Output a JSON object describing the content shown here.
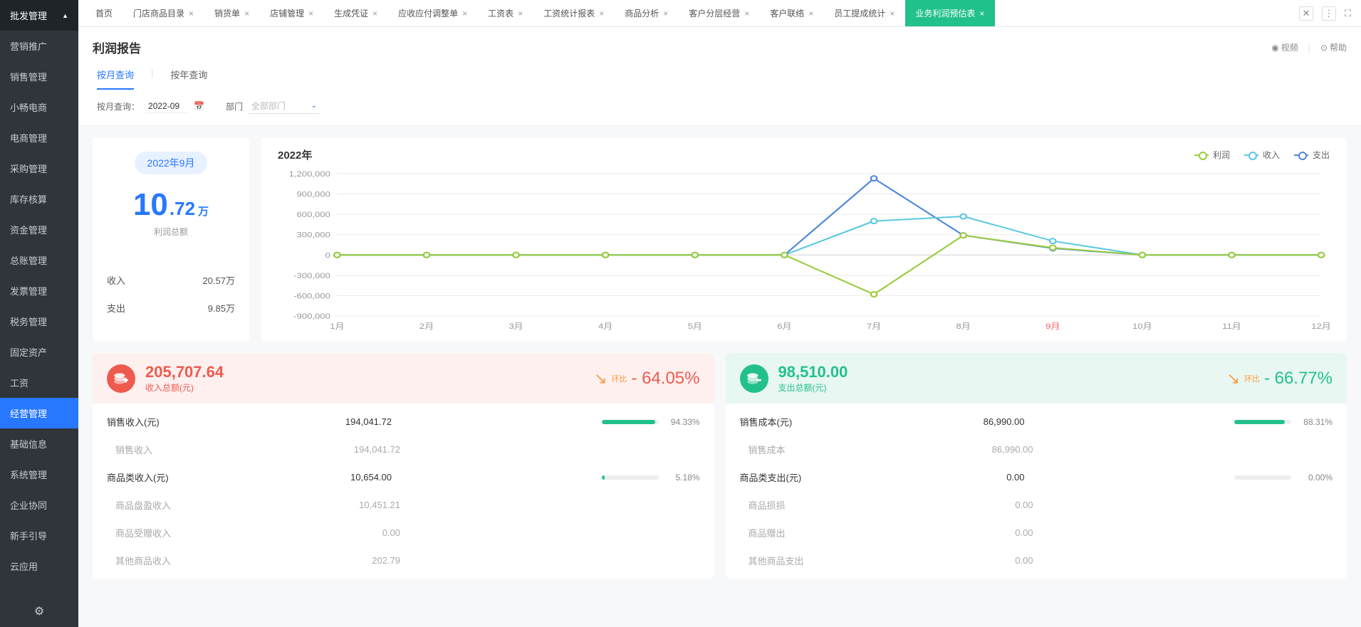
{
  "sidebar": {
    "header": "批发管理",
    "items": [
      {
        "label": "营销推广"
      },
      {
        "label": "销售管理"
      },
      {
        "label": "小畅电商"
      },
      {
        "label": "电商管理"
      },
      {
        "label": "采购管理"
      },
      {
        "label": "库存核算"
      },
      {
        "label": "资金管理"
      },
      {
        "label": "总账管理"
      },
      {
        "label": "发票管理"
      },
      {
        "label": "税务管理"
      },
      {
        "label": "固定资产"
      },
      {
        "label": "工资"
      },
      {
        "label": "经营管理",
        "active": true
      },
      {
        "label": "基础信息"
      },
      {
        "label": "系统管理"
      },
      {
        "label": "企业协同"
      },
      {
        "label": "新手引导"
      },
      {
        "label": "云应用"
      }
    ]
  },
  "tabs": [
    {
      "label": "首页",
      "closable": false
    },
    {
      "label": "门店商品目录",
      "closable": true
    },
    {
      "label": "销货单",
      "closable": true
    },
    {
      "label": "店铺管理",
      "closable": true
    },
    {
      "label": "生成凭证",
      "closable": true
    },
    {
      "label": "应收应付调整单",
      "closable": true
    },
    {
      "label": "工资表",
      "closable": true
    },
    {
      "label": "工资统计报表",
      "closable": true
    },
    {
      "label": "商品分析",
      "closable": true
    },
    {
      "label": "客户分层经营",
      "closable": true
    },
    {
      "label": "客户联络",
      "closable": true
    },
    {
      "label": "员工提成统计",
      "closable": true
    },
    {
      "label": "业务利润预估表",
      "closable": true,
      "active": true
    }
  ],
  "page": {
    "title": "利润报告",
    "help_video": "视频",
    "help_text": "帮助"
  },
  "query": {
    "tabs": [
      {
        "label": "按月查询",
        "active": true
      },
      {
        "label": "按年查询"
      }
    ],
    "month_label": "按月查询：",
    "month_value": "2022-09",
    "dept_label": "部门",
    "dept_placeholder": "全部部门"
  },
  "summary": {
    "badge": "2022年9月",
    "profit_int": "10",
    "profit_dec": ".72",
    "profit_unit": "万",
    "profit_label": "利润总额",
    "rows": [
      {
        "label": "收入",
        "value": "20.57万"
      },
      {
        "label": "支出",
        "value": "9.85万"
      }
    ]
  },
  "chart": {
    "title": "2022年",
    "legend": [
      {
        "label": "利润",
        "color": "#9bcc3c"
      },
      {
        "label": "收入",
        "color": "#5ac8e0"
      },
      {
        "label": "支出",
        "color": "#4f88d9"
      }
    ],
    "y_ticks": [
      "1,200,000",
      "900,000",
      "600,000",
      "300,000",
      "0",
      "-300,000",
      "-600,000",
      "-900,000"
    ],
    "x_ticks": [
      "1月",
      "2月",
      "3月",
      "4月",
      "5月",
      "6月",
      "7月",
      "8月",
      "9月",
      "10月",
      "11月",
      "12月"
    ],
    "x_active_index": 8,
    "ylim": [
      -900000,
      1200000
    ],
    "series": {
      "profit": [
        0,
        0,
        0,
        0,
        0,
        0,
        -580000,
        290000,
        107200,
        0,
        0,
        0
      ],
      "income": [
        0,
        0,
        0,
        0,
        0,
        0,
        500000,
        570000,
        205708,
        0,
        0,
        0
      ],
      "expense": [
        0,
        0,
        0,
        0,
        0,
        0,
        1130000,
        290000,
        98510,
        0,
        0,
        0
      ]
    },
    "colors": {
      "profit": "#9bcc3c",
      "income": "#5ac8e0",
      "expense": "#4f88d9"
    },
    "grid_color": "#eaeaea",
    "zero_color": "#d0d0d0"
  },
  "income": {
    "total": "205,707.64",
    "total_label": "收入总额(元)",
    "huanbi_label": "环比",
    "trend_pct": "- 64.05%",
    "rows": [
      {
        "label": "销售收入(元)",
        "value": "194,041.72",
        "pct": "94.33%",
        "pct_val": 94.33,
        "bar_color": "#22c18b"
      },
      {
        "label": "销售收入",
        "value": "194,041.72",
        "sub": true
      },
      {
        "label": "商品类收入(元)",
        "value": "10,654.00",
        "pct": "5.18%",
        "pct_val": 5.18,
        "bar_color": "#22c18b"
      },
      {
        "label": "商品盘盈收入",
        "value": "10,451.21",
        "sub": true
      },
      {
        "label": "商品受赠收入",
        "value": "0.00",
        "sub": true
      },
      {
        "label": "其他商品收入",
        "value": "202.79",
        "sub": true
      }
    ]
  },
  "expense": {
    "total": "98,510.00",
    "total_label": "支出总额(元)",
    "huanbi_label": "环比",
    "trend_pct": "- 66.77%",
    "rows": [
      {
        "label": "销售成本(元)",
        "value": "86,990.00",
        "pct": "88.31%",
        "pct_val": 88.31,
        "bar_color": "#22c18b"
      },
      {
        "label": "销售成本",
        "value": "86,990.00",
        "sub": true
      },
      {
        "label": "商品类支出(元)",
        "value": "0.00",
        "pct": "0.00%",
        "pct_val": 0,
        "bar_color": "#22c18b"
      },
      {
        "label": "商品损损",
        "value": "0.00",
        "sub": true
      },
      {
        "label": "商品赠出",
        "value": "0.00",
        "sub": true
      },
      {
        "label": "其他商品支出",
        "value": "0.00",
        "sub": true
      }
    ]
  }
}
